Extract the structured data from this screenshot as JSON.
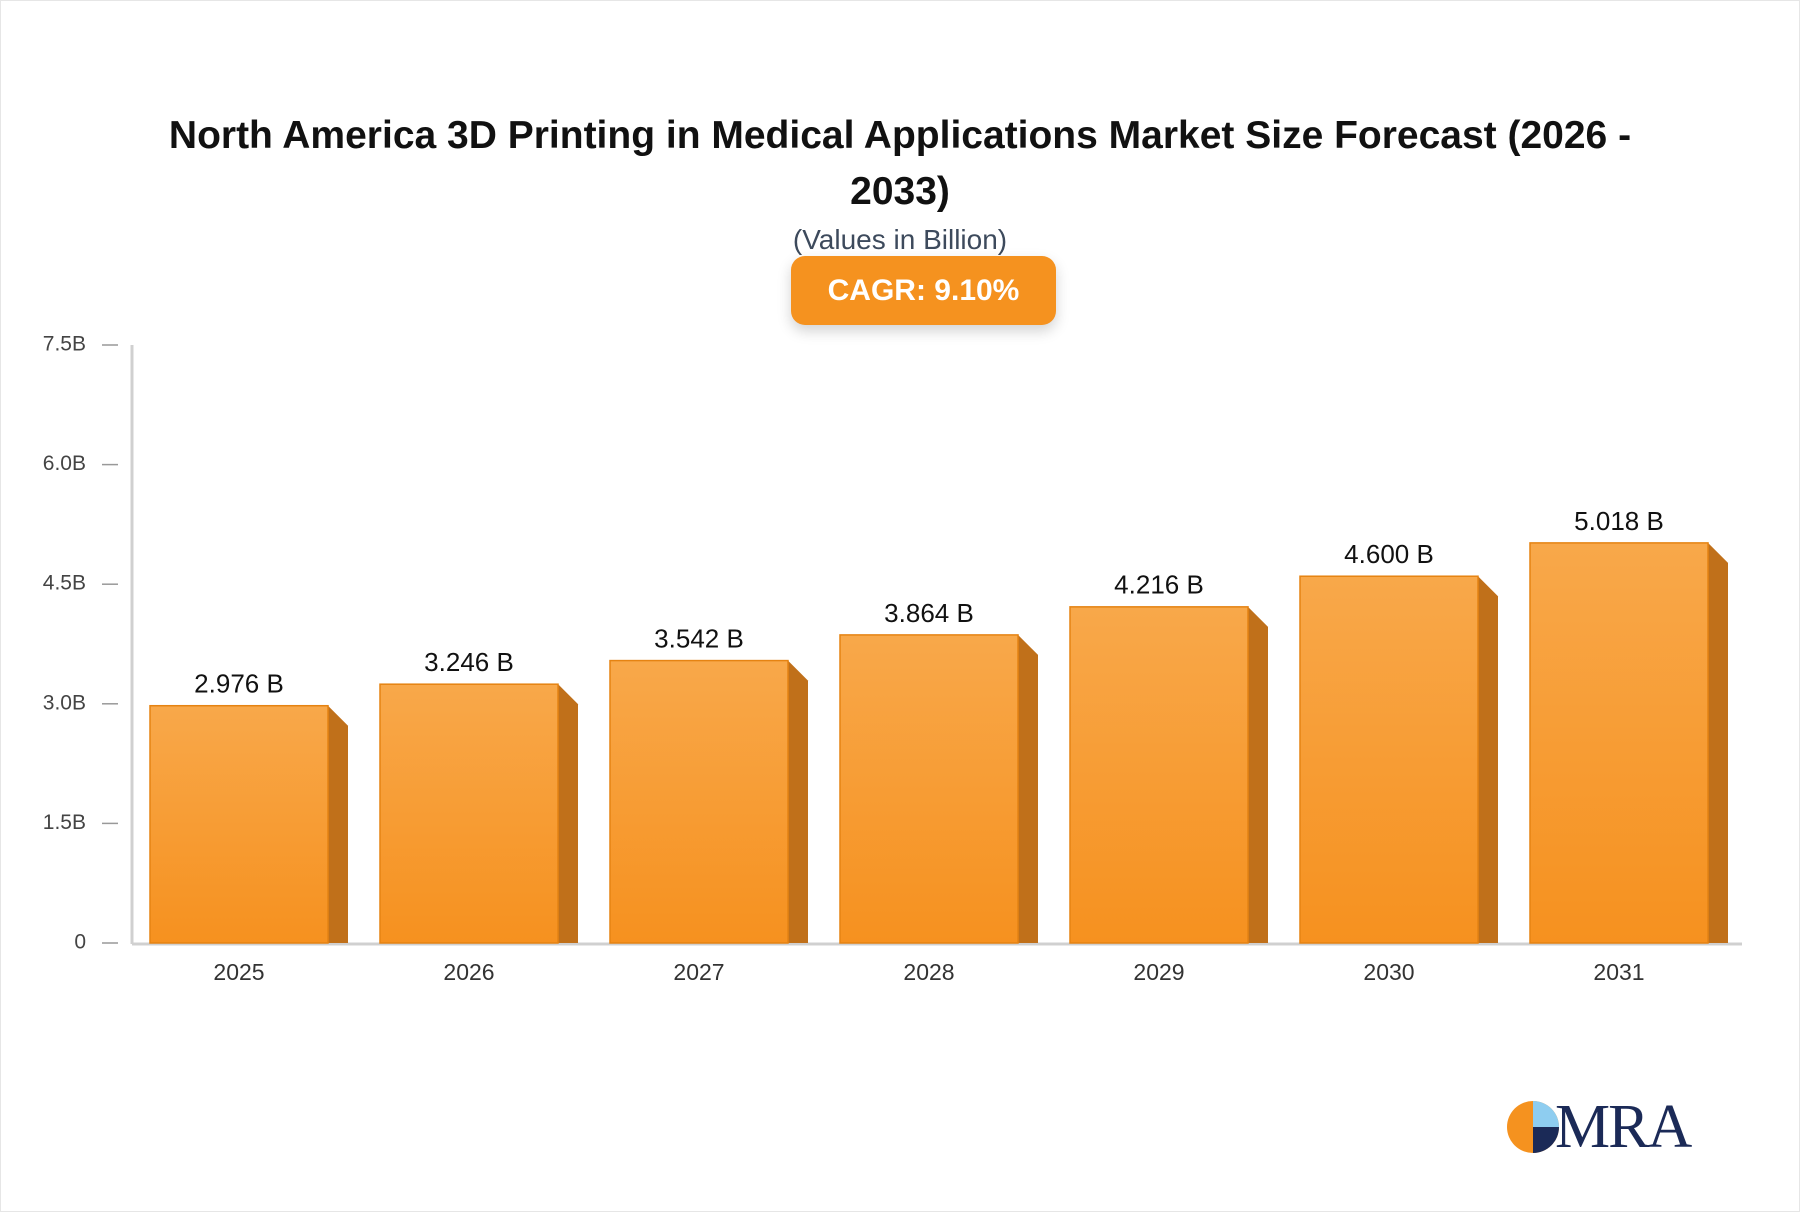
{
  "chart_data": {
    "type": "bar",
    "title": "North America 3D Printing in Medical Applications Market Size Forecast (2026 - 2033)",
    "subtitle": "(Values in Billion)",
    "annotation": "CAGR: 9.10%",
    "categories": [
      "2025",
      "2026",
      "2027",
      "2028",
      "2029",
      "2030",
      "2031"
    ],
    "values": [
      2.976,
      3.246,
      3.542,
      3.864,
      4.216,
      4.6,
      5.018
    ],
    "value_labels": [
      "2.976 B",
      "3.246 B",
      "3.542 B",
      "3.864 B",
      "4.216 B",
      "4.600 B",
      "5.018 B"
    ],
    "color": "#f7961f",
    "ylim": [
      0,
      7.5
    ],
    "yticks": [
      0,
      {
        "value": 1.5,
        "label": "1.5B"
      },
      {
        "value": 3.0,
        "label": "3.0B"
      },
      {
        "value": 4.5,
        "label": "4.5B"
      },
      {
        "value": 6.0,
        "label": "6.0B"
      },
      {
        "value": 7.5,
        "label": "7.5B"
      }
    ],
    "grid": false
  },
  "brand": "MRA"
}
